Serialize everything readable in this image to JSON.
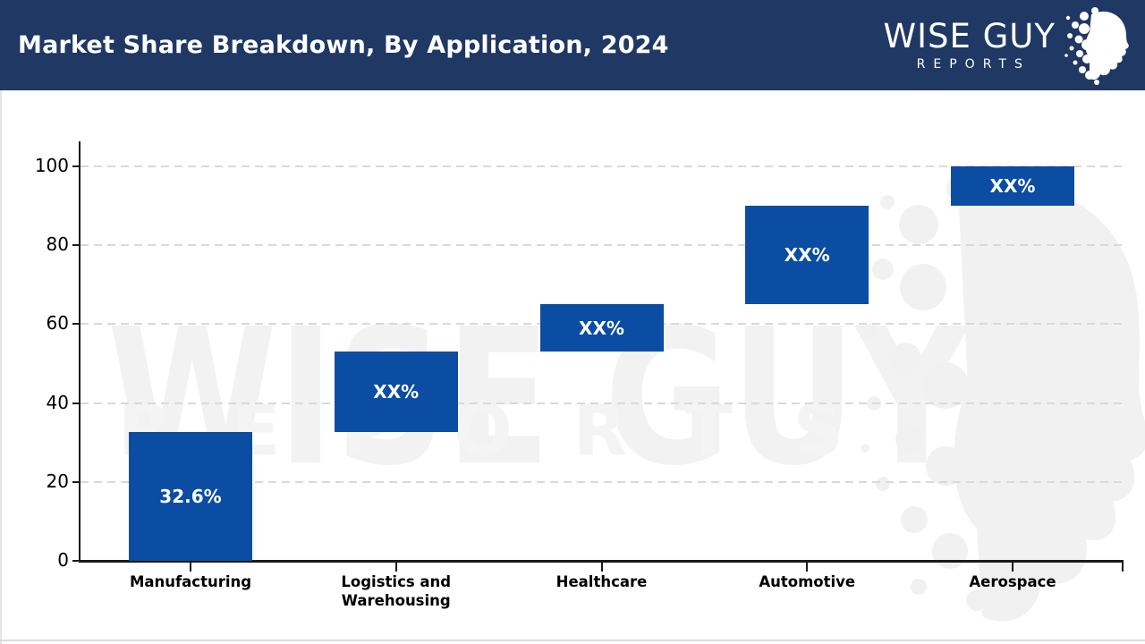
{
  "header": {
    "title": "Market Share Breakdown, By Application, 2024",
    "bg_color": "#1f3864",
    "logo": {
      "wordmark": "WISE GUY",
      "subtext": "REPORTS"
    }
  },
  "watermark": {
    "wordmark": "WISE GUY",
    "subtext": "REPORTS"
  },
  "chart_data": {
    "type": "bar",
    "subtype": "floating-segment-waterfall",
    "title": "Market Share Breakdown, By Application, 2024",
    "categories": [
      "Manufacturing",
      "Logistics and Warehousing",
      "Healthcare",
      "Automotive",
      "Aerospace"
    ],
    "segments": [
      {
        "category": "Manufacturing",
        "from": 0,
        "to": 32.6,
        "label": "32.6%"
      },
      {
        "category": "Logistics and Warehousing",
        "from": 32.6,
        "to": 53,
        "label": "XX%"
      },
      {
        "category": "Healthcare",
        "from": 53,
        "to": 65,
        "label": "XX%"
      },
      {
        "category": "Automotive",
        "from": 65,
        "to": 90,
        "label": "XX%"
      },
      {
        "category": "Aerospace",
        "from": 90,
        "to": 100,
        "label": "XX%"
      }
    ],
    "ylim": [
      0,
      100
    ],
    "yticks": [
      0,
      20,
      40,
      60,
      80,
      100
    ],
    "xlabel": "",
    "ylabel": "",
    "bar_color": "#0b4da2",
    "bar_label_color": "#ffffff",
    "axis_color": "#1a1a1a",
    "gridline_color": "#d9d9d9",
    "grid": "horizontal-dashed",
    "legend": "none"
  }
}
